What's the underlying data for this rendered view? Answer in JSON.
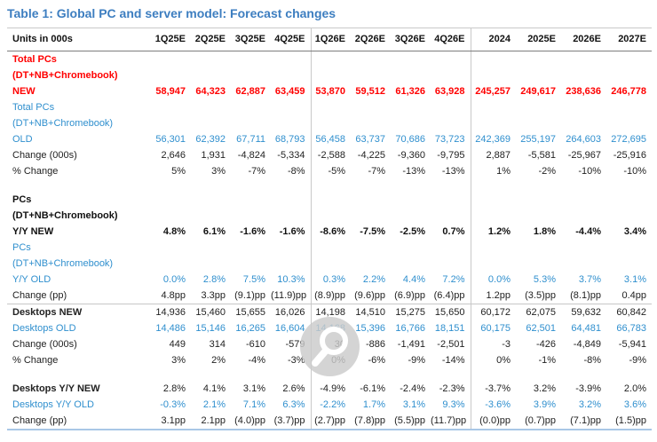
{
  "title": "Table 1: Global PC and server model: Forecast changes",
  "colors": {
    "title_blue": "#3d7ec0",
    "row_red": "#ff0000",
    "row_blue": "#2f8fce",
    "header_rule": "#7d7d7d",
    "group_rule": "#c9c9c9",
    "bottom_rule": "#a9c7e6"
  },
  "watermark": {
    "icon": "magnifier-icon"
  },
  "chart_data": {
    "type": "table",
    "title": "Table 1: Global PC and server model: Forecast changes",
    "columns": [
      "Units in 000s",
      "1Q25E",
      "2Q25E",
      "3Q25E",
      "4Q25E",
      "1Q26E",
      "2Q26E",
      "3Q26E",
      "4Q26E",
      "2024",
      "2025E",
      "2026E",
      "2027E"
    ],
    "rows": [
      {
        "label": "Total PCs",
        "style": "red",
        "values": [
          "",
          "",
          "",
          "",
          "",
          "",
          "",
          "",
          "",
          "",
          "",
          ""
        ]
      },
      {
        "label": "(DT+NB+Chromebook)",
        "style": "red",
        "values": [
          "",
          "",
          "",
          "",
          "",
          "",
          "",
          "",
          "",
          "",
          "",
          ""
        ]
      },
      {
        "label": "NEW",
        "style": "red",
        "values": [
          "58,947",
          "64,323",
          "62,887",
          "63,459",
          "53,870",
          "59,512",
          "61,326",
          "63,928",
          "245,257",
          "249,617",
          "238,636",
          "246,778"
        ]
      },
      {
        "label": "Total PCs",
        "style": "blue",
        "values": [
          "",
          "",
          "",
          "",
          "",
          "",
          "",
          "",
          "",
          "",
          "",
          ""
        ]
      },
      {
        "label": "(DT+NB+Chromebook)",
        "style": "blue",
        "values": [
          "",
          "",
          "",
          "",
          "",
          "",
          "",
          "",
          "",
          "",
          "",
          ""
        ]
      },
      {
        "label": "OLD",
        "style": "blue",
        "values": [
          "56,301",
          "62,392",
          "67,711",
          "68,793",
          "56,458",
          "63,737",
          "70,686",
          "73,723",
          "242,369",
          "255,197",
          "264,603",
          "272,695"
        ]
      },
      {
        "label": "Change (000s)",
        "style": "black",
        "values": [
          "2,646",
          "1,931",
          "-4,824",
          "-5,334",
          "-2,588",
          "-4,225",
          "-9,360",
          "-9,795",
          "2,887",
          "-5,581",
          "-25,967",
          "-25,916"
        ]
      },
      {
        "label": "% Change",
        "style": "black",
        "values": [
          "5%",
          "3%",
          "-7%",
          "-8%",
          "-5%",
          "-7%",
          "-13%",
          "-13%",
          "1%",
          "-2%",
          "-10%",
          "-10%"
        ]
      },
      {
        "label": "",
        "style": "spacer",
        "values": [
          "",
          "",
          "",
          "",
          "",
          "",
          "",
          "",
          "",
          "",
          "",
          ""
        ]
      },
      {
        "label": "PCs",
        "style": "bbold",
        "values": [
          "",
          "",
          "",
          "",
          "",
          "",
          "",
          "",
          "",
          "",
          "",
          ""
        ]
      },
      {
        "label": "(DT+NB+Chromebook)",
        "style": "bbold",
        "values": [
          "",
          "",
          "",
          "",
          "",
          "",
          "",
          "",
          "",
          "",
          "",
          ""
        ]
      },
      {
        "label": "Y/Y NEW",
        "style": "bbold",
        "values": [
          "4.8%",
          "6.1%",
          "-1.6%",
          "-1.6%",
          "-8.6%",
          "-7.5%",
          "-2.5%",
          "0.7%",
          "1.2%",
          "1.8%",
          "-4.4%",
          "3.4%"
        ]
      },
      {
        "label": "PCs",
        "style": "blue",
        "values": [
          "",
          "",
          "",
          "",
          "",
          "",
          "",
          "",
          "",
          "",
          "",
          ""
        ]
      },
      {
        "label": "(DT+NB+Chromebook)",
        "style": "blue",
        "values": [
          "",
          "",
          "",
          "",
          "",
          "",
          "",
          "",
          "",
          "",
          "",
          ""
        ]
      },
      {
        "label": "Y/Y OLD",
        "style": "blue",
        "values": [
          "0.0%",
          "2.8%",
          "7.5%",
          "10.3%",
          "0.3%",
          "2.2%",
          "4.4%",
          "7.2%",
          "0.0%",
          "5.3%",
          "3.7%",
          "3.1%"
        ]
      },
      {
        "label": "Change (pp)",
        "style": "black",
        "divider_below": true,
        "values": [
          "4.8pp",
          "3.3pp",
          "(9.1)pp",
          "(11.9)pp",
          "(8.9)pp",
          "(9.6)pp",
          "(6.9)pp",
          "(6.4)pp",
          "1.2pp",
          "(3.5)pp",
          "(8.1)pp",
          "0.4pp"
        ]
      },
      {
        "label": "Desktops NEW",
        "style": "black",
        "label_bold": true,
        "values": [
          "14,936",
          "15,460",
          "15,655",
          "16,026",
          "14,198",
          "14,510",
          "15,275",
          "15,650",
          "60,172",
          "62,075",
          "59,632",
          "60,842"
        ]
      },
      {
        "label": "Desktops OLD",
        "style": "blue",
        "values": [
          "14,486",
          "15,146",
          "16,265",
          "16,604",
          "14,168",
          "15,396",
          "16,766",
          "18,151",
          "60,175",
          "62,501",
          "64,481",
          "66,783"
        ]
      },
      {
        "label": "Change (000s)",
        "style": "black",
        "values": [
          "449",
          "314",
          "-610",
          "-579",
          "30",
          "-886",
          "-1,491",
          "-2,501",
          "-3",
          "-426",
          "-4,849",
          "-5,941"
        ]
      },
      {
        "label": "% Change",
        "style": "black",
        "values": [
          "3%",
          "2%",
          "-4%",
          "-3%",
          "0%",
          "-6%",
          "-9%",
          "-14%",
          "0%",
          "-1%",
          "-8%",
          "-9%"
        ]
      },
      {
        "label": "",
        "style": "spacer",
        "values": [
          "",
          "",
          "",
          "",
          "",
          "",
          "",
          "",
          "",
          "",
          "",
          ""
        ]
      },
      {
        "label": "Desktops Y/Y NEW",
        "style": "black",
        "label_bold": true,
        "values": [
          "2.8%",
          "4.1%",
          "3.1%",
          "2.6%",
          "-4.9%",
          "-6.1%",
          "-2.4%",
          "-2.3%",
          "-3.7%",
          "3.2%",
          "-3.9%",
          "2.0%"
        ]
      },
      {
        "label": "Desktops Y/Y OLD",
        "style": "blue",
        "values": [
          "-0.3%",
          "2.1%",
          "7.1%",
          "6.3%",
          "-2.2%",
          "1.7%",
          "3.1%",
          "9.3%",
          "-3.6%",
          "3.9%",
          "3.2%",
          "3.6%"
        ]
      },
      {
        "label": "Change (pp)",
        "style": "black",
        "last": true,
        "values": [
          "3.1pp",
          "2.1pp",
          "(4.0)pp",
          "(3.7)pp",
          "(2.7)pp",
          "(7.8)pp",
          "(5.5)pp",
          "(11.7)pp",
          "(0.0)pp",
          "(0.7)pp",
          "(7.1)pp",
          "(1.5)pp"
        ]
      }
    ]
  }
}
